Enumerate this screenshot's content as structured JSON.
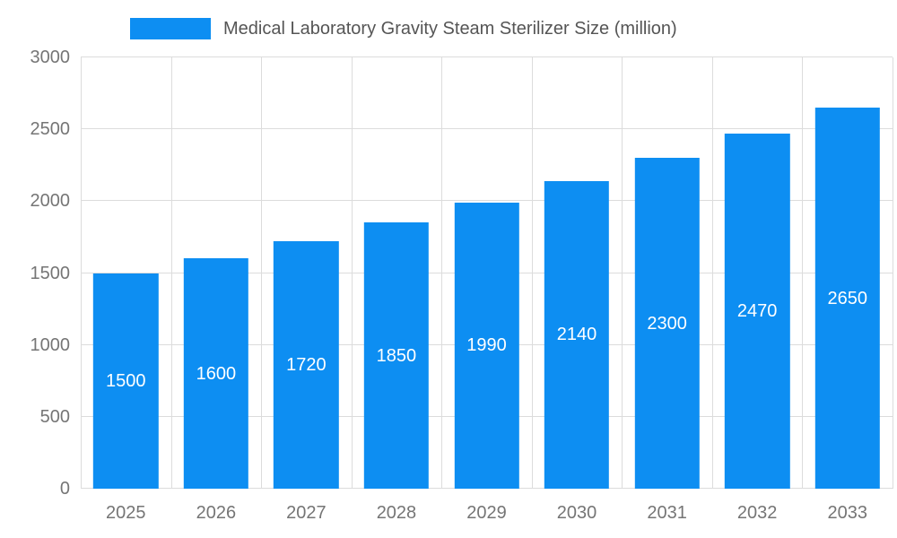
{
  "chart_data": {
    "type": "bar",
    "title": "Medical Laboratory Gravity Steam Sterilizer Size (million)",
    "categories": [
      "2025",
      "2026",
      "2027",
      "2028",
      "2029",
      "2030",
      "2031",
      "2032",
      "2033"
    ],
    "values": [
      1500,
      1600,
      1720,
      1850,
      1990,
      2140,
      2300,
      2470,
      2650
    ],
    "xlabel": "",
    "ylabel": "",
    "ylim": [
      0,
      3000
    ],
    "y_ticks": [
      0,
      500,
      1000,
      1500,
      2000,
      2500,
      3000
    ],
    "grid": true,
    "legend_position": "top",
    "value_labels_position": "inside-center",
    "colors": {
      "bar": "#0D8EF2",
      "bar_value_label": "#FFFFFF",
      "axis_tick_label": "#757575",
      "title": "#555555",
      "gridline": "#DCDCDC",
      "background": "#FFFFFF"
    }
  }
}
